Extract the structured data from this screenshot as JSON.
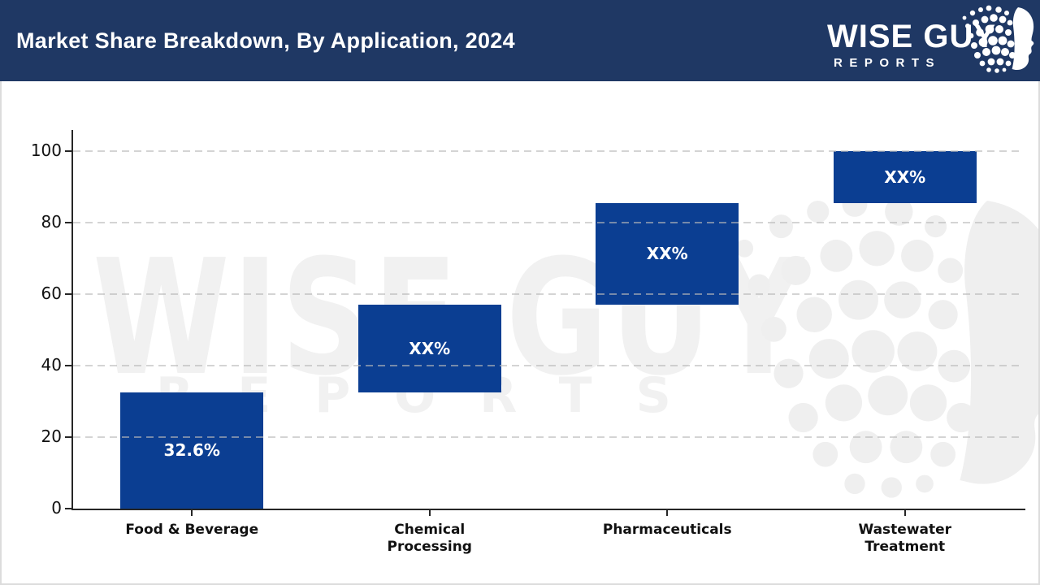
{
  "header": {
    "title": "Market Share Breakdown, By Application, 2024",
    "bg_color": "#1F3864",
    "logo": {
      "line1": "WISE GUY",
      "line2": "REPORTS"
    }
  },
  "watermark": {
    "line1": "WISE GUY",
    "line2": "REPORTS"
  },
  "chart_data": {
    "type": "bar",
    "subtype": "floating-waterfall-segments",
    "title": "Market Share Breakdown, By Application, 2024",
    "categories": [
      "Food & Beverage",
      "Chemical Processing",
      "Pharmaceuticals",
      "Wastewater Treatment"
    ],
    "segments": [
      {
        "category": "Food & Beverage",
        "category_lines": [
          "Food & Beverage"
        ],
        "start": 0,
        "end": 32.6,
        "value_label": "32.6%"
      },
      {
        "category": "Chemical Processing",
        "category_lines": [
          "Chemical",
          "Processing"
        ],
        "start": 32.6,
        "end": 57.0,
        "value_label": "XX%"
      },
      {
        "category": "Pharmaceuticals",
        "category_lines": [
          "Pharmaceuticals"
        ],
        "start": 57.0,
        "end": 85.5,
        "value_label": "XX%"
      },
      {
        "category": "Wastewater Treatment",
        "category_lines": [
          "Wastewater",
          "Treatment"
        ],
        "start": 85.5,
        "end": 100,
        "value_label": "XX%"
      }
    ],
    "xlabel": "",
    "ylabel": "",
    "ylim": [
      0,
      100
    ],
    "yticks": [
      0,
      20,
      40,
      60,
      80,
      100
    ],
    "grid": "horizontal-dashed",
    "legend": null,
    "bar_color": "#0B3E92",
    "axis_color": "#262626",
    "gridline_color": "#d9d9d9"
  }
}
